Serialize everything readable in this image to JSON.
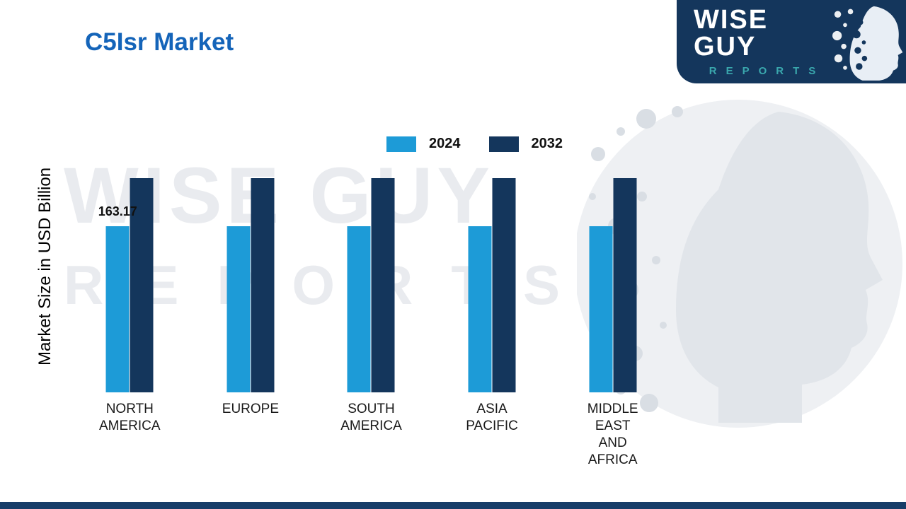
{
  "title": "C5Isr Market",
  "logo": {
    "line1": "WISE GUY",
    "line2": "REPORTS"
  },
  "watermark": {
    "line1": "WISE GUY",
    "line2": "REPORTS"
  },
  "colors": {
    "title_blue": "#1464b9",
    "bar_2024": "#1d9bd7",
    "bar_2032": "#14365c",
    "logo_background": "#14365c",
    "logo_accent": "#3aa7ad",
    "footer_strip": "#173d68",
    "watermark_gray": "#e9ebef"
  },
  "chart_data": {
    "type": "bar",
    "title": "C5Isr Market",
    "ylabel": "Market Size in USD Billion",
    "xlabel": "",
    "categories": [
      "NORTH AMERICA",
      "EUROPE",
      "SOUTH AMERICA",
      "ASIA PACIFIC",
      "MIDDLE EAST AND AFRICA"
    ],
    "series": [
      {
        "name": "2024",
        "color": "#1d9bd7",
        "values": [
          163.17,
          163.17,
          163.17,
          163.17,
          163.17
        ]
      },
      {
        "name": "2032",
        "color": "#14365c",
        "values": [
          210,
          210,
          210,
          210,
          210
        ]
      }
    ],
    "data_labels": [
      {
        "category_index": 0,
        "series_index": 0,
        "text": "163.17"
      }
    ],
    "ylim": [
      0,
      215
    ],
    "grid": false,
    "legend_position": "top-center"
  }
}
